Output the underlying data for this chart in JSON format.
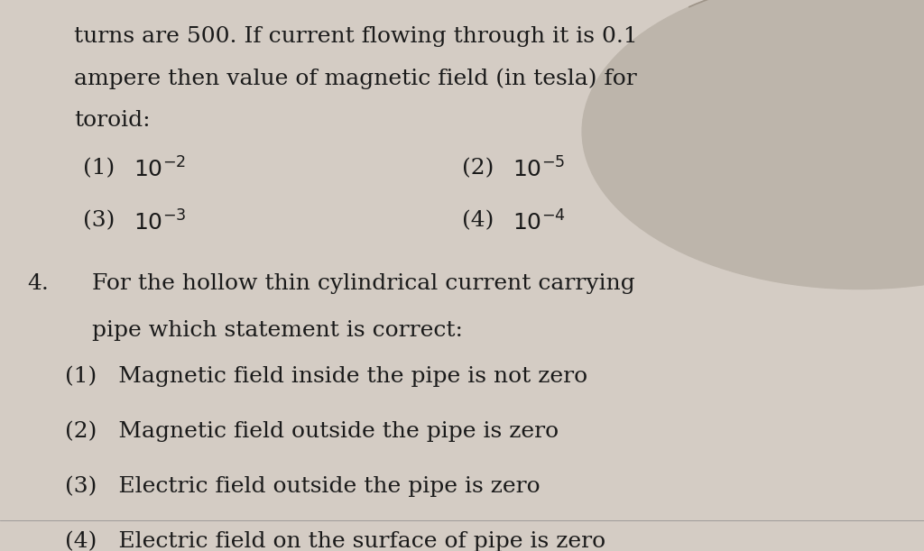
{
  "background_color": "#d4ccc4",
  "text_color": "#1a1a1a",
  "header_line": "turns are 500. If current flowing through it is 0.1",
  "line2": "ampere then value of magnetic field (in tesla) for",
  "line3": "toroid:",
  "opt1_num": "(1)",
  "opt1_val": "$10^{-2}$",
  "opt2_num": "(2)",
  "opt2_val": "$10^{-5}$",
  "opt3_num": "(3)",
  "opt3_val": "$10^{-3}$",
  "opt4_num": "(4)",
  "opt4_val": "$10^{-4}$",
  "q4_num": "4.",
  "q4_text1": "For the hollow thin cylindrical current carrying",
  "q4_text2": "pipe which statement is correct:",
  "q4_opt1": "(1)   Magnetic field inside the pipe is not zero",
  "q4_opt2": "(2)   Magnetic field outside the pipe is zero",
  "q4_opt3": "(3)   Electric field outside the pipe is zero",
  "q4_opt4": "(4)   Electric field on the surface of pipe is zero",
  "font_size_body": 18
}
